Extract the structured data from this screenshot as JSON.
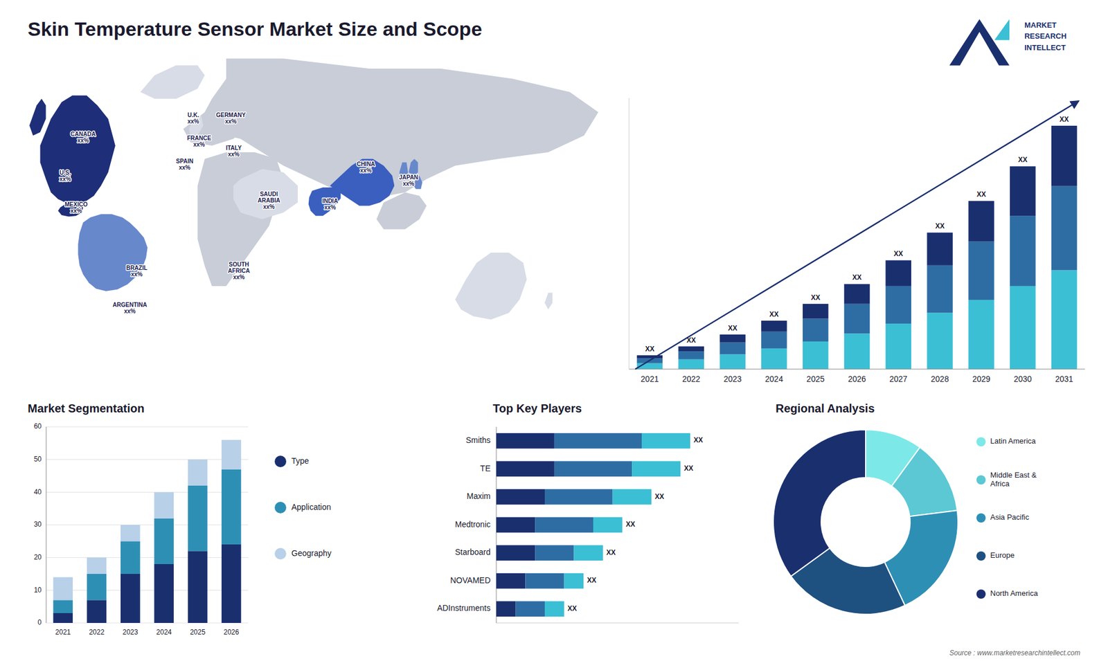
{
  "chart_data": [
    {
      "type": "page",
      "title": "Skin Temperature Sensor Market Size and Scope",
      "annotations": [
        "Source : www.marketresearchintellect.com"
      ]
    },
    {
      "type": "logo",
      "annotations": [
        "MARKET",
        "RESEARCH",
        "INTELLECT"
      ]
    },
    {
      "type": "map",
      "annotations": [
        "CANADA\nxx%",
        "U.S.\nxx%",
        "MEXICO\nxx%",
        "BRAZIL\nxx%",
        "ARGENTINA\nxx%",
        "U.K.\nxx%",
        "FRANCE\nxx%",
        "SPAIN\nxx%",
        "GERMANY\nxx%",
        "ITALY\nxx%",
        "SAUDI\nARABIA\nxx%",
        "SOUTH\nAFRICA\nxx%",
        "CHINA\nxx%",
        "JAPAN\nxx%",
        "INDIA\nxx%"
      ]
    },
    {
      "type": "bar",
      "stacked": true,
      "categories": [
        "2021",
        "2022",
        "2023",
        "2024",
        "2025",
        "2026",
        "2027",
        "2028",
        "2029",
        "2030",
        "2031"
      ],
      "series": [
        {
          "color": "#3bbfd4",
          "values": [
            3.0,
            5.0,
            7.5,
            10.5,
            14.0,
            18.0,
            23.0,
            28.5,
            35.0,
            42.0,
            50.0
          ]
        },
        {
          "color": "#2e6da4",
          "values": [
            2.5,
            4.0,
            6.0,
            8.5,
            11.5,
            15.0,
            19.0,
            24.0,
            29.5,
            35.5,
            42.5
          ]
        },
        {
          "color": "#1a2f6e",
          "values": [
            1.5,
            2.5,
            4.0,
            5.5,
            7.5,
            10.0,
            13.0,
            16.5,
            20.5,
            25.0,
            30.5
          ]
        }
      ],
      "ylim": [
        0,
        137
      ],
      "yticks": [],
      "tick_labels": "x",
      "annotations": [
        "XX",
        "XX",
        "XX",
        "XX",
        "XX",
        "XX",
        "XX",
        "XX",
        "XX",
        "XX",
        "XX"
      ]
    },
    {
      "type": "bar",
      "stacked": true,
      "title": "Market Segmentation",
      "categories": [
        "2021",
        "2022",
        "2023",
        "2024",
        "2025",
        "2026"
      ],
      "series": [
        {
          "name": "Type",
          "color": "#1a2f6e",
          "values": [
            3,
            7,
            15,
            18,
            22,
            24
          ]
        },
        {
          "name": "Application",
          "color": "#2e8fb5",
          "values": [
            4,
            8,
            10,
            14,
            20,
            23
          ]
        },
        {
          "name": "Geography",
          "color": "#b8d0e8",
          "values": [
            7,
            5,
            5,
            8,
            8,
            9
          ]
        }
      ],
      "ylim": [
        0,
        60
      ],
      "yticks": [
        0,
        10,
        20,
        30,
        40,
        50,
        60
      ],
      "grid": true,
      "legend": "right"
    },
    {
      "type": "bar",
      "orientation": "horizontal",
      "stacked": true,
      "title": "Top Key Players",
      "categories": [
        "Smiths",
        "TE",
        "Maxim",
        "Medtronic",
        "Starboard",
        "NOVAMED",
        "ADInstruments"
      ],
      "series": [
        {
          "color": "#1a2f6e",
          "values": [
            6,
            6,
            5,
            4,
            4,
            3,
            2
          ]
        },
        {
          "color": "#2e6da4",
          "values": [
            9,
            8,
            7,
            6,
            4,
            4,
            3
          ]
        },
        {
          "color": "#3bbfd4",
          "values": [
            5,
            5,
            4,
            3,
            3,
            2,
            2
          ]
        }
      ],
      "xlim": [
        0,
        25
      ],
      "xticks": [],
      "tick_labels": "y",
      "annotations": [
        "XX",
        "XX",
        "XX",
        "XX",
        "XX",
        "XX",
        "XX"
      ]
    },
    {
      "type": "donut",
      "title": "Regional Analysis",
      "categories": [
        "Latin America",
        "Middle East &\nAfrica",
        "Asia Pacific",
        "Europe",
        "North America"
      ],
      "values": [
        10,
        13,
        20,
        22,
        35
      ],
      "colors": [
        "#7de8e8",
        "#5bc8d4",
        "#2e8fb5",
        "#1e5080",
        "#1a2f6e"
      ],
      "legend": "right"
    }
  ]
}
